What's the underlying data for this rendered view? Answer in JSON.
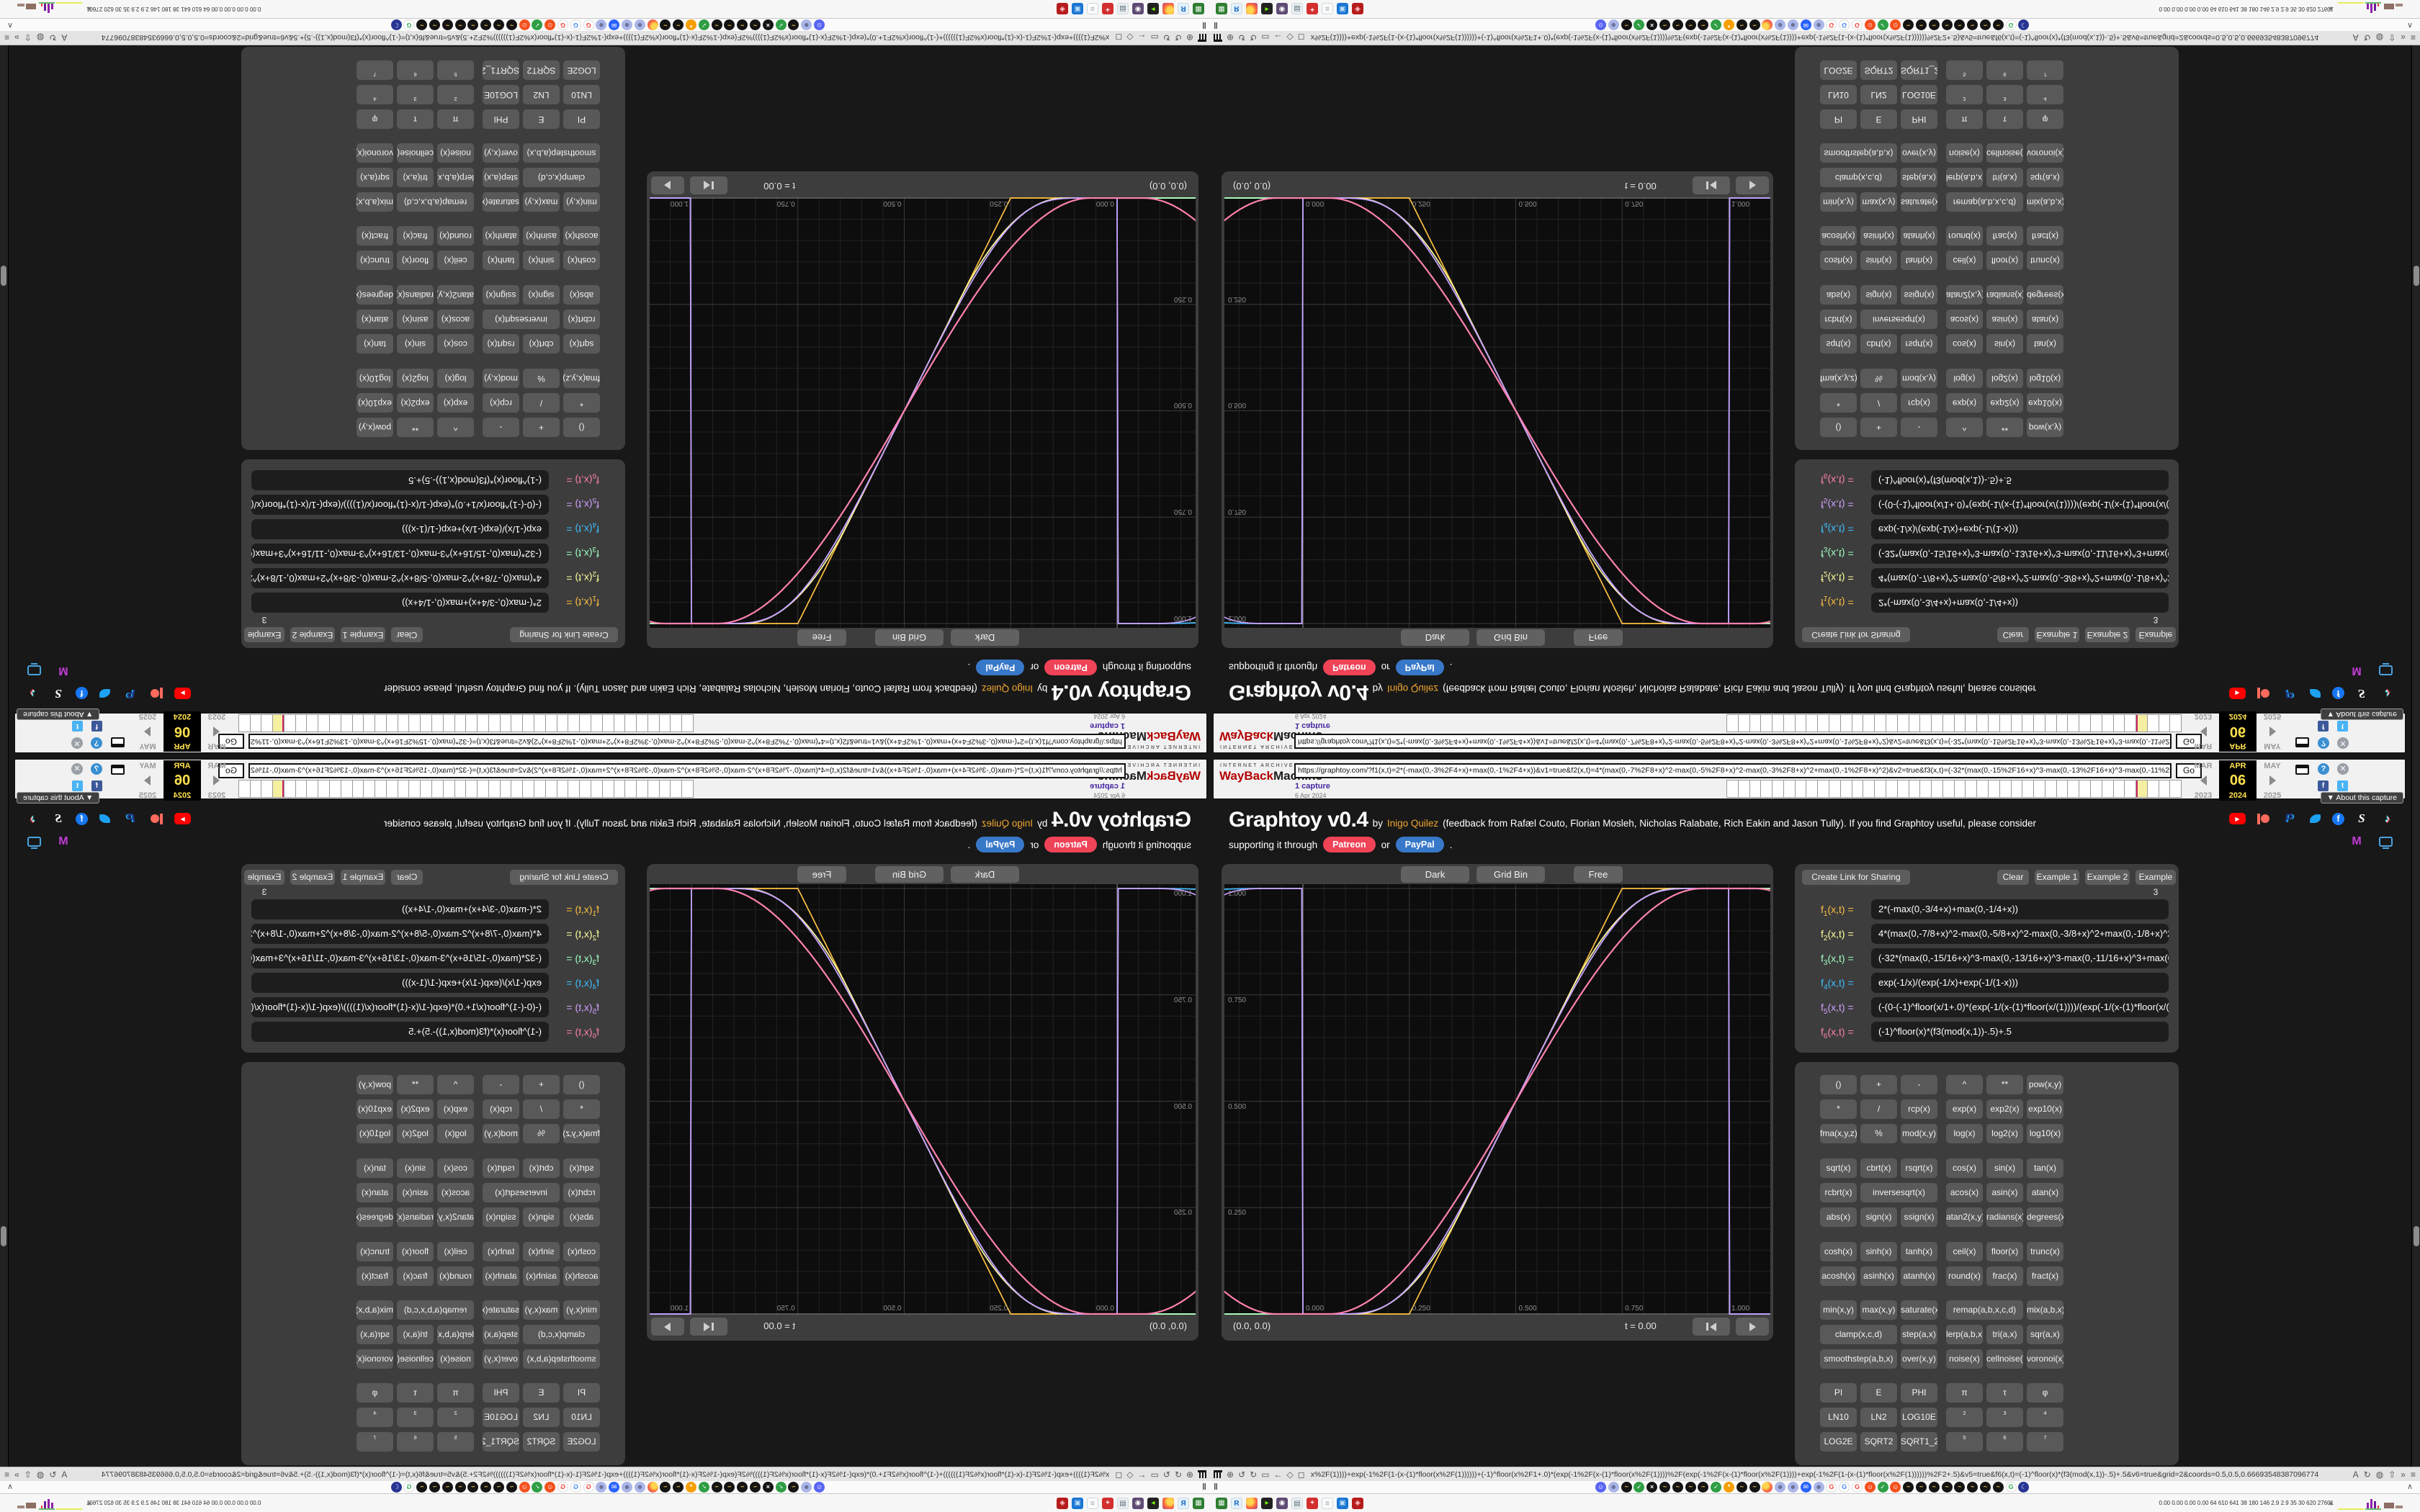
{
  "app": "Graphtoy v0.4 (Wayback Machine capture, mirrored 4-way collage)",
  "quadrant": {
    "wayback": {
      "archive_line": "INTERNET ARCHIVE",
      "logo_red": "WayBack",
      "logo_black": "Machine",
      "url": "https://graphtoy.com/?f1(x,t)=2*(-max(0,-3%2F4+x)+max(0,-1%2F4+x))&v1=true&f2(x,t)=4*(max(0,-7%2F8+x)^2-max(0,-5%2F8+x)^2-max(0,-3%2F8+x)^2+max(0,-1%2F8+x)^2)&v2=true&f3(x,t)=(-32*(max(0,-15%2F16+x)^3-max(0,-13%2F16+x)^3-max(0,-11%2F16+x",
      "go_label": "Go",
      "captures": "1 capture",
      "date": "6 Apr 2024",
      "months": [
        "MAR",
        "APR",
        "MAY"
      ],
      "day": "06",
      "years": [
        "2023",
        "2024",
        "2025"
      ],
      "about": "▼ About this capture",
      "help_glyph": "?",
      "close_glyph": "✕",
      "fb_glyph": "f",
      "tw_glyph": "t",
      "timeline_cells": 40,
      "timeline_marker_index": 36
    },
    "header": {
      "title": "Graphtoy v0.4",
      "by": "by",
      "author": "Inigo Quilez",
      "credits": "(feedback from Rafæl Couto, Florian Mosleh, Nicholas Ralabate, Rich Eakin and Jason Tully). If you find Graphtoy useful, please consider",
      "support": "supporting it through",
      "patreon": "Patreon",
      "or": "or",
      "paypal": "PayPal",
      "period": ".",
      "social_row1": [
        "youtube",
        "patreon",
        "paypal",
        "twitter",
        "facebook",
        "shadertoy",
        "tiktok"
      ],
      "social_row2": [
        "mastodon",
        "tv"
      ]
    },
    "graph": {
      "toolbar": [
        "Dark",
        "Grid Bin",
        "Free"
      ],
      "y_ticks": [
        "1.000",
        "0.750",
        "0.500",
        "0.250"
      ],
      "x_ticks": [
        "0.000",
        "0.250",
        "0.500",
        "0.750",
        "1.000"
      ],
      "coords_label": "(0.0, 0.0)",
      "time_label": "t = 0.00"
    },
    "formulas": {
      "create_link": "Create Link for Sharing",
      "actions": [
        "Clear",
        "Example 1",
        "Example 2",
        "Example 3"
      ],
      "rows": [
        {
          "sub": "1",
          "label": "(x,t) =",
          "color": "#ffc040",
          "value": "2*(-max(0,-3/4+x)+max(0,-1/4+x))"
        },
        {
          "sub": "2",
          "label": "(x,t) =",
          "color": "#ffffa0",
          "value": "4*(max(0,-7/8+x)^2-max(0,-5/8+x)^2-max(0,-3/8+x)^2+max(0,-1/8+x)^2)"
        },
        {
          "sub": "3",
          "label": "(x,t) =",
          "color": "#a0ffc0",
          "value": "(-32*(max(0,-15/16+x)^3-max(0,-13/16+x)^3-max(0,-11/16+x)^3+max(0,-9/16+x)^3-max(0,-7/16+x)^3+m"
        },
        {
          "sub": "4",
          "label": "(x,t) =",
          "color": "#40c0ff",
          "value": "exp(-1/x)/(exp(-1/x)+exp(-1/(1-x)))"
        },
        {
          "sub": "5",
          "label": "(x,t) =",
          "color": "#d0a0ff",
          "value": "(-(0-(-1)^floor(x/1+.0)*(exp(-1/(x-(1)*floor(x/(1))))/(exp(-1/(x-(1)*floor(x/(1))))+exp(-1/(1-(x-(1)*floor(x/(1))))))"
        },
        {
          "sub": "6",
          "label": "(x,t) =",
          "color": "#ff80b0",
          "value": "(-1)^floor(x)*(f3(mod(x,1))-.5)+.5"
        }
      ]
    },
    "keypad": {
      "groups": [
        [
          [
            "()",
            "+",
            "-",
            "^",
            "**",
            "pow(x,y)"
          ],
          [
            "*",
            "/",
            "rcp(x)",
            "exp(x)",
            "exp2(x)",
            "exp10(x)"
          ],
          [
            "fma(x,y,z)",
            "%",
            "mod(x,y)",
            "log(x)",
            "log2(x)",
            "log10(x)"
          ]
        ],
        [
          [
            "sqrt(x)",
            "cbrt(x)",
            "rsqrt(x)",
            "cos(x)",
            "sin(x)",
            "tan(x)"
          ],
          [
            "rcbrt(x)",
            {
              "t": "inversesqrt(x)",
              "span": 2
            },
            "acos(x)",
            "asin(x)",
            "atan(x)"
          ],
          [
            "abs(x)",
            "sign(x)",
            "ssign(x)",
            "atan2(x,y)",
            "radians(x)",
            "degrees(x)"
          ]
        ],
        [
          [
            "cosh(x)",
            "sinh(x)",
            "tanh(x)",
            "ceil(x)",
            "floor(x)",
            "trunc(x)"
          ],
          [
            "acosh(x)",
            "asinh(x)",
            "atanh(x)",
            "round(x)",
            "frac(x)",
            "fract(x)"
          ]
        ],
        [
          [
            "min(x,y)",
            "max(x,y)",
            "saturate(x)",
            {
              "t": "remap(a,b,x,c,d)",
              "span": 2
            },
            "mix(a,b,x)"
          ],
          [
            {
              "t": "clamp(x,c,d)",
              "span": 2
            },
            "step(a,x)",
            "lerp(a,b,x)",
            "tri(a,x)",
            "sqr(a,x)"
          ],
          [
            {
              "t": "smoothstep(a,b,x)",
              "span": 2
            },
            "over(x,y)",
            "noise(x)",
            "cellnoise(x)",
            "voronoi(x)"
          ]
        ],
        [
          [
            "PI",
            "E",
            "PHI",
            "π",
            "τ",
            "φ"
          ],
          [
            "LN10",
            "LN2",
            "LOG10E",
            {
              "t": "2",
              "sup": true
            },
            {
              "t": "3",
              "sup": true
            },
            {
              "t": "4",
              "sup": true
            }
          ],
          [
            "LOG2E",
            "SQRT2",
            "SQRT1_2",
            {
              "t": "5",
              "sup": true
            },
            {
              "t": "6",
              "sup": true
            },
            {
              "t": "7",
              "sup": true
            }
          ]
        ]
      ]
    },
    "browser": {
      "url": "x%2F(1))))+exp(-1%2F(1-(x-(1)*floor(x%2F(1))))))+(-1)^floor(x%2F1+.0)*(exp(-1%2F(x-(1)*floor(x%2F(1))))%2F(exp(-1%2F(x-(1)*floor(x%2F(1))))+exp(-1%2F(1-(x-(1)*floor(x%2F(1))))))%2F2+.5)&v5=true&f6(x,t)=(-1)^floor(x)*(f3(mod(x,1))-.5)+.5&v6=true&grid=2&coords=0.5,0.5,0.66693548387096774",
      "left_icons": [
        "archive-logo",
        "add-circle",
        "undo",
        "redo",
        "folder",
        "back-arrow",
        "shield",
        "lock"
      ],
      "left_glyphs": [
        "",
        "⊕",
        "↺",
        "↻",
        "▭",
        "←",
        "◇",
        "◻"
      ],
      "right_icons": [
        "translate",
        "reload",
        "globe",
        "share",
        "more-chevrons",
        "menu"
      ],
      "right_glyphs": [
        "A",
        "↻",
        "◍",
        "⇧",
        "»",
        "≡"
      ],
      "pause_glyph": "‖",
      "chevron_up": "∧"
    },
    "extensions": [
      {
        "c": "#5865f2",
        "t": "☺",
        "f": "#fff"
      },
      {
        "c": "#aab6e8",
        "t": "☻",
        "f": "#666a8f"
      },
      {
        "c": "#141414",
        "t": "~",
        "f": "#e6c34a"
      },
      {
        "c": "#2f9e44",
        "t": "✓",
        "f": "#fff"
      },
      {
        "c": "#141414",
        "t": "×",
        "f": "#fff"
      },
      {
        "c": "#141414",
        "t": "~",
        "f": "#e6c34a"
      },
      {
        "c": "#141414",
        "t": "~",
        "f": "#e6c34a"
      },
      {
        "c": "#141414",
        "t": "~",
        "f": "#e6c34a"
      },
      {
        "c": "#141414",
        "t": "~",
        "f": "#e6c34a"
      },
      {
        "c": "#2f9e44",
        "t": "✓",
        "f": "#fff"
      },
      {
        "c": "#f59f00",
        "t": "*",
        "f": "#fff"
      },
      {
        "c": "#141414",
        "t": "~",
        "f": "#e6c34a"
      },
      {
        "c": "#141414",
        "t": "~",
        "f": "#e6c34a"
      },
      {
        "c": "firefox",
        "t": "",
        "f": "#fff"
      },
      {
        "c": "#aab6e8",
        "t": "☻",
        "f": "#666a8f"
      },
      {
        "c": "#aab6e8",
        "t": "☻",
        "f": "#666a8f"
      },
      {
        "c": "#2962ff",
        "t": "✉",
        "f": "#fff"
      },
      {
        "c": "#aab6e8",
        "t": "☻",
        "f": "#666a8f"
      },
      {
        "c": "#ffffff",
        "t": "G",
        "f": "#ea4335"
      },
      {
        "c": "#ffffff",
        "t": "G",
        "f": "#4285f4"
      },
      {
        "c": "#ffffff",
        "t": "G",
        "f": "#ea4335"
      },
      {
        "c": "#f4511e",
        "t": "☺",
        "f": "#fff"
      },
      {
        "c": "#2f9e44",
        "t": "✓",
        "f": "#fff"
      },
      {
        "c": "#f4511e",
        "t": "☺",
        "f": "#fff"
      },
      {
        "c": "#141414",
        "t": "~",
        "f": "#e6c34a"
      },
      {
        "c": "#141414",
        "t": "~",
        "f": "#e6c34a"
      },
      {
        "c": "#141414",
        "t": "~",
        "f": "#e6c34a"
      },
      {
        "c": "#141414",
        "t": "~",
        "f": "#e6c34a"
      },
      {
        "c": "#141414",
        "t": "~",
        "f": "#e6c34a"
      },
      {
        "c": "#141414",
        "t": "~",
        "f": "#e6c34a"
      },
      {
        "c": "#141414",
        "t": "~",
        "f": "#e6c34a"
      },
      {
        "c": "#141414",
        "t": "~",
        "f": "#e6c34a"
      },
      {
        "c": "#ffffff",
        "t": "G",
        "f": "#34a853"
      },
      {
        "c": "#283593",
        "t": "☾",
        "f": "#cfd8ff"
      }
    ],
    "taskbar": {
      "pinned": [
        {
          "c": "#2e7d32",
          "t": "▦",
          "f": "#e8f5e9"
        },
        {
          "c": "#e3f2fd",
          "t": "R",
          "f": "#1565c0"
        },
        {
          "c": "firefox",
          "t": "",
          "f": "#fff"
        },
        {
          "c": "#212121",
          "t": "▸",
          "f": "#76ff03"
        },
        {
          "c": "#5e4b73",
          "t": "◉",
          "f": "#ffffff"
        },
        {
          "c": "#eceff1",
          "t": "▤",
          "f": "#546e7a"
        },
        {
          "c": "#d32f2f",
          "t": "+",
          "f": "#ffffff"
        },
        {
          "c": "#fafafa",
          "t": "≡",
          "f": "#90a4ae"
        },
        {
          "c": "#1976d2",
          "t": "▣",
          "f": "#bbdefb"
        },
        {
          "c": "#b71c1c",
          "t": "◈",
          "f": "#ffcdd2"
        }
      ],
      "tray_text": "0.00 0.00 0.00 0.00  64  610  641  38  180  146  2.9  2.9  35  30  620 27601",
      "tray_icon_glyph": "★"
    }
  },
  "chart_data": {
    "type": "line",
    "title": "",
    "xlabel": "x",
    "ylabel": "y",
    "xlim": [
      -0.184,
      1.098
    ],
    "ylim": [
      0,
      1.01
    ],
    "grid": "minor 0.05 / major 0.25, dark theme",
    "x_tick_labels": [
      "0.000",
      "0.250",
      "0.500",
      "0.750",
      "1.000"
    ],
    "y_tick_labels": [
      "0.250",
      "0.500",
      "0.750",
      "1.000"
    ],
    "series": [
      {
        "name": "f1",
        "color": "#ffc040",
        "formula": "2*(-max(0,-3/4+x)+max(0,-1/4+x))",
        "shape": "linear step 0.25→0.75"
      },
      {
        "name": "f2",
        "color": "#ffffa0",
        "formula": "4*(max(0,-7/8+x)^2-max(0,-5/8+x)^2-max(0,-3/8+x)^2+max(0,-1/8+x)^2)",
        "shape": "quadratic smoothstep 0.125→0.875"
      },
      {
        "name": "f3",
        "color": "#a0ffc0",
        "formula": "cubic B-spline smoothstep 1/16→15/16",
        "shape": "cubic smoothstep"
      },
      {
        "name": "f4",
        "color": "#40c0ff",
        "formula": "exp(-1/x)/(exp(-1/x)+exp(-1/(1-x)))",
        "shape": "C-inf smoothstep, =1 for x<0, drops to 0 at x=1"
      },
      {
        "name": "f5",
        "color": "#d0a0ff",
        "formula": "periodic version of f4",
        "shape": "same as f4 on (0,1)"
      },
      {
        "name": "f6",
        "color": "#ff80b0",
        "formula": "(-1)^floor(x)*(f3(mod(x,1))-.5)+.5",
        "shape": "f3 mirrored/repeated"
      }
    ]
  }
}
